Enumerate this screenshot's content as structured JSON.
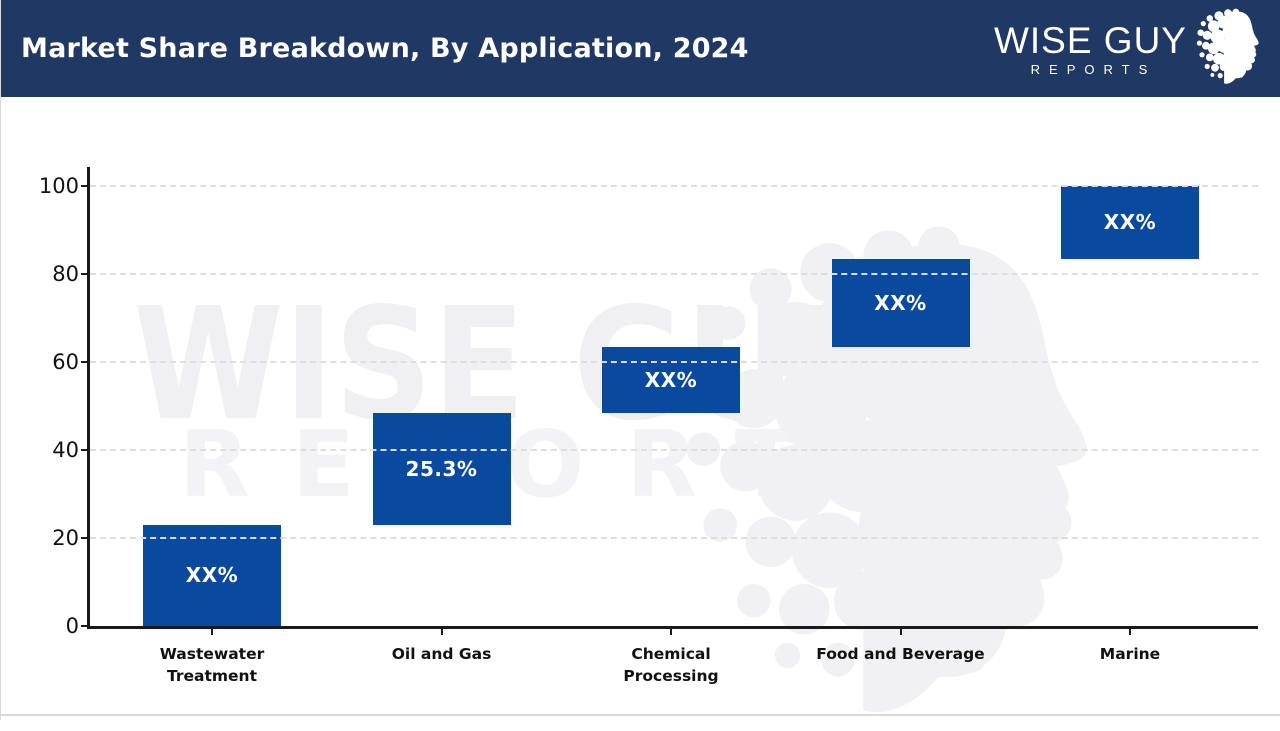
{
  "header": {
    "title": "Market Share Breakdown, By Application, 2024",
    "bg_color": "#1f3864",
    "logo": {
      "line1": "WISE GUY",
      "line2": "REPORTS"
    }
  },
  "watermark": {
    "line1": "WISE GUY",
    "line2": "REPORTS"
  },
  "chart_data": {
    "type": "bar",
    "subtype": "waterfall",
    "title": "Market Share Breakdown, By Application, 2024",
    "categories": [
      "Wastewater\nTreatment",
      "Oil and Gas",
      "Chemical\nProcessing",
      "Food and Beverage",
      "Marine"
    ],
    "segments": [
      {
        "category": "Wastewater Treatment",
        "start": 0,
        "end": 23,
        "label": "XX%"
      },
      {
        "category": "Oil and Gas",
        "start": 23,
        "end": 48.3,
        "label": "25.3%"
      },
      {
        "category": "Chemical Processing",
        "start": 48.3,
        "end": 63.5,
        "label": "XX%"
      },
      {
        "category": "Food and Beverage",
        "start": 63.5,
        "end": 83.5,
        "label": "XX%"
      },
      {
        "category": "Marine",
        "start": 83.5,
        "end": 100,
        "label": "XX%"
      }
    ],
    "xlabel": "",
    "ylabel": "",
    "yticks": [
      0,
      20,
      40,
      60,
      80,
      100
    ],
    "ylim": [
      0,
      105
    ],
    "grid": "horizontal-dashed-over-bars",
    "legend": "none",
    "bar_color": "#0a4a9e",
    "bar_label_color": "#ffffff"
  },
  "colors": {
    "header_bg": "#1f3864",
    "bar": "#0a4a9e",
    "grid": "#dedede",
    "axis": "#1a1a1a",
    "watermark": "#f0f0f2",
    "frame_border": "#d9d9d9"
  }
}
